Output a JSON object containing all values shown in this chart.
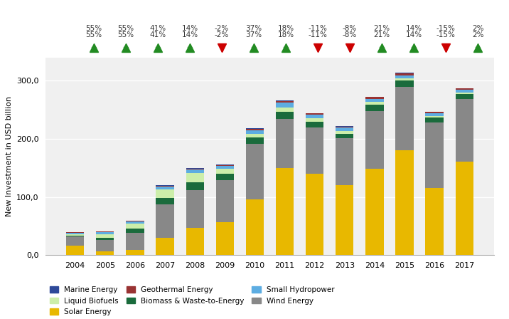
{
  "years": [
    2004,
    2005,
    2006,
    2007,
    2008,
    2009,
    2010,
    2011,
    2012,
    2013,
    2014,
    2015,
    2016,
    2017
  ],
  "pct_labels": [
    "55%",
    "55%",
    "41%",
    "14%",
    "-2%",
    "37%",
    "18%",
    "-11%",
    "-8%",
    "21%",
    "14%",
    "-15%",
    "2%"
  ],
  "pct_values": [
    55,
    55,
    41,
    14,
    -2,
    37,
    18,
    -11,
    -8,
    21,
    14,
    -15,
    2
  ],
  "marine_energy": [
    0.5,
    0.5,
    0.5,
    0.5,
    0.5,
    0.5,
    0.5,
    1.5,
    0.5,
    0.5,
    0.5,
    1.5,
    0.5,
    0.5
  ],
  "geothermal_energy": [
    1.0,
    1.0,
    1.0,
    1.5,
    2.0,
    2.0,
    3.0,
    3.0,
    2.0,
    2.0,
    3.0,
    3.5,
    2.5,
    2.5
  ],
  "small_hydropower": [
    3.0,
    4.0,
    4.0,
    5.0,
    6.0,
    5.0,
    6.0,
    8.0,
    6.0,
    5.0,
    5.0,
    5.0,
    4.5,
    5.0
  ],
  "liquid_biofuels": [
    2.0,
    5.5,
    8.0,
    14.0,
    16.0,
    8.0,
    5.5,
    8.0,
    6.0,
    5.0,
    5.0,
    3.0,
    2.5,
    2.5
  ],
  "biomass_waste": [
    1.5,
    4.0,
    7.0,
    12.0,
    13.0,
    11.0,
    11.0,
    12.0,
    10.0,
    8.0,
    11.0,
    12.0,
    9.0,
    9.0
  ],
  "wind_energy": [
    16.0,
    20.0,
    30.0,
    57.0,
    65.0,
    72.0,
    96.0,
    84.0,
    80.0,
    81.0,
    99.0,
    109.0,
    112.0,
    107.0
  ],
  "solar_energy": [
    16.0,
    6.0,
    9.0,
    30.0,
    47.0,
    57.0,
    96.0,
    150.0,
    140.0,
    120.0,
    149.0,
    180.0,
    116.0,
    161.0
  ],
  "colors": {
    "marine_energy": "#2E4999",
    "geothermal_energy": "#993333",
    "small_hydropower": "#5DADE2",
    "liquid_biofuels": "#CCEEAA",
    "biomass_waste": "#1A6B3C",
    "wind_energy": "#888888",
    "solar_energy": "#E8B800"
  },
  "ylabel": "New Investment in USD billion",
  "background_color": "#FFFFFF",
  "plot_bg_color": "#F0F0F0",
  "ylim": [
    0,
    340
  ],
  "yticks": [
    0,
    100,
    200,
    300
  ],
  "ytick_labels": [
    "0,0",
    "100,0",
    "200,0",
    "300,0"
  ]
}
